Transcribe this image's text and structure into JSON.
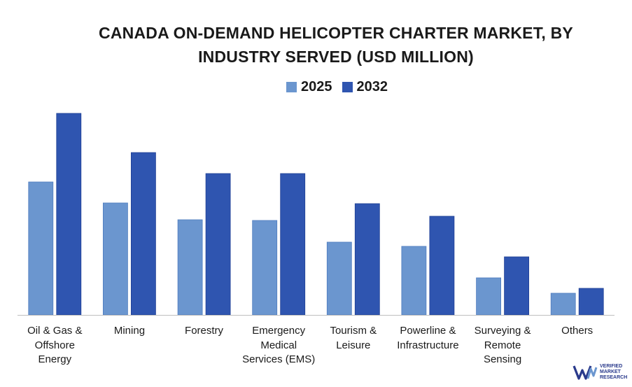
{
  "chart_data": {
    "type": "bar",
    "title_lines": [
      "CANADA ON-DEMAND HELICOPTER CHARTER MARKET, BY",
      "INDUSTRY SERVED (USD MILLION)"
    ],
    "categories": [
      "Oil & Gas &\nOffshore\nEnergy",
      "Mining",
      "Forestry",
      "Emergency\nMedical\nServices (EMS)",
      "Tourism &\nLeisure",
      "Powerline &\nInfrastructure",
      "Surveying &\nRemote\nSensing",
      "Others"
    ],
    "series": [
      {
        "name": "2025",
        "color": "#6b96cf",
        "values": [
          190,
          160,
          136,
          135,
          104,
          98,
          53,
          31
        ]
      },
      {
        "name": "2032",
        "color": "#2f55b0",
        "values": [
          288,
          232,
          202,
          202,
          159,
          141,
          83,
          38
        ]
      }
    ],
    "ylim": [
      0,
      300
    ],
    "grid": false,
    "legend": "top-center"
  },
  "logo": {
    "text_lines": [
      "VERIFIED",
      "MARKET",
      "RESEARCH"
    ],
    "icon": "vmr-logo-icon"
  }
}
